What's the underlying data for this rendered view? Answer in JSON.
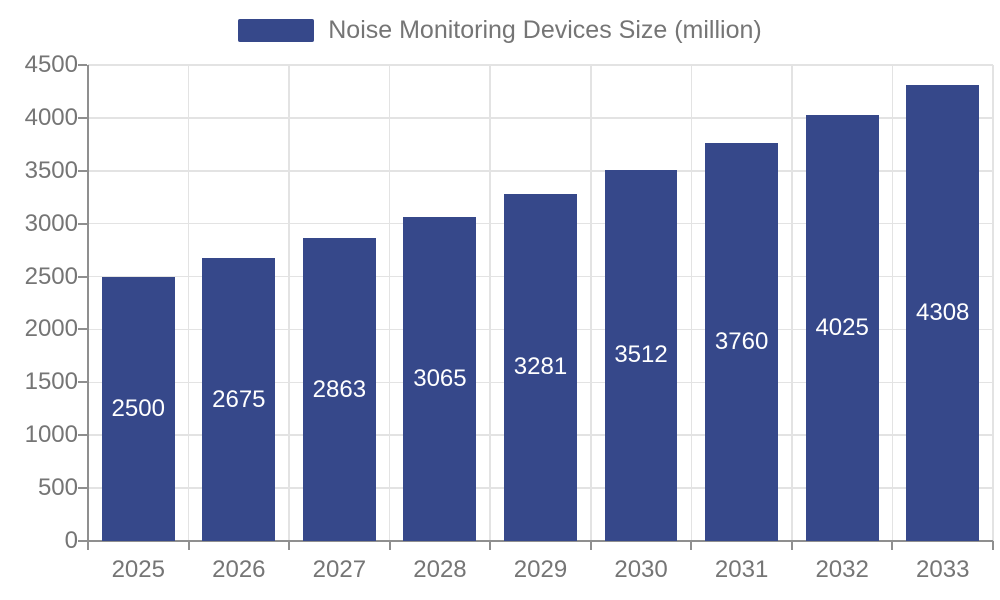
{
  "legend": {
    "label": "Noise Monitoring Devices Size (million)"
  },
  "chart_data": {
    "type": "bar",
    "title": "",
    "xlabel": "",
    "ylabel": "",
    "categories": [
      "2025",
      "2026",
      "2027",
      "2028",
      "2029",
      "2030",
      "2031",
      "2032",
      "2033"
    ],
    "values": [
      2500,
      2675,
      2863,
      3065,
      3281,
      3512,
      3760,
      4025,
      4308
    ],
    "series_name": "Noise Monitoring Devices Size (million)",
    "ylim": [
      0,
      4500
    ],
    "ytick_step": 500,
    "grid": true,
    "legend_position": "top",
    "bar_color": "#36488A",
    "value_label_color": "#ffffff",
    "axis_text_color": "#757575",
    "grid_color": "#e3e3e3",
    "axis_line_color": "#8f8f8f"
  }
}
